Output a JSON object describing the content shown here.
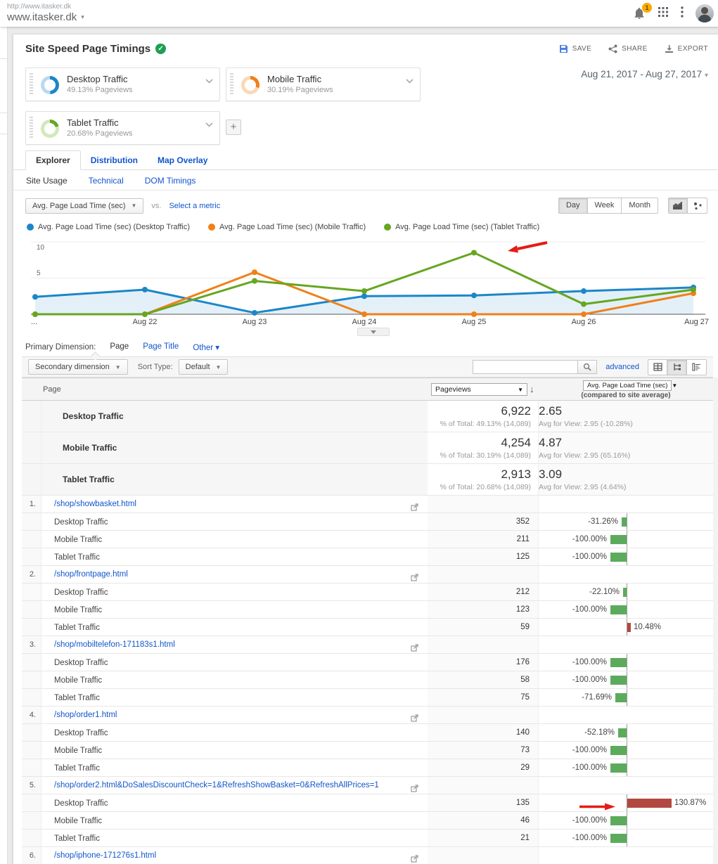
{
  "topbar": {
    "url": "http://www.itasker.dk",
    "account": "www.itasker.dk",
    "notification_count": "1"
  },
  "header": {
    "title": "Site Speed Page Timings",
    "save_label": "SAVE",
    "share_label": "SHARE",
    "export_label": "EXPORT",
    "date_range": "Aug 21, 2017 - Aug 27, 2017"
  },
  "segments": [
    {
      "name": "Desktop Traffic",
      "sub": "49.13% Pageviews",
      "pct": 49.13,
      "color": "#1c86c8",
      "light": "#b9d9ef"
    },
    {
      "name": "Mobile Traffic",
      "sub": "30.19% Pageviews",
      "pct": 30.19,
      "color": "#f08019",
      "light": "#f9d9b8"
    },
    {
      "name": "Tablet Traffic",
      "sub": "20.68% Pageviews",
      "pct": 20.68,
      "color": "#66a621",
      "light": "#d4e8bb"
    }
  ],
  "add_segment_label": "+",
  "tabs": [
    {
      "label": "Explorer",
      "active": true
    },
    {
      "label": "Distribution",
      "active": false
    },
    {
      "label": "Map Overlay",
      "active": false
    }
  ],
  "subtabs": [
    {
      "label": "Site Usage",
      "active": true
    },
    {
      "label": "Technical",
      "active": false
    },
    {
      "label": "DOM Timings",
      "active": false
    }
  ],
  "metric_bar": {
    "metric_dropdown": "Avg. Page Load Time (sec)",
    "vs_label": "vs.",
    "select_metric": "Select a metric",
    "granularities": [
      "Day",
      "Week",
      "Month"
    ],
    "active_granularity": "Day"
  },
  "chart_data": {
    "type": "line",
    "x": [
      "Aug 21",
      "Aug 22",
      "Aug 23",
      "Aug 24",
      "Aug 25",
      "Aug 26",
      "Aug 27"
    ],
    "x_tick_labels": [
      "...",
      "Aug 22",
      "Aug 23",
      "Aug 24",
      "Aug 25",
      "Aug 26",
      "Aug 27"
    ],
    "ylabel": "",
    "ylim": [
      0,
      10
    ],
    "yticks": [
      5,
      10
    ],
    "grid": true,
    "legend_position": "top",
    "series": [
      {
        "name": "Avg. Page Load Time (sec) (Desktop Traffic)",
        "color": "#1c86c8",
        "area_fill": true,
        "values": [
          2.4,
          3.4,
          0.2,
          2.5,
          2.6,
          3.2,
          3.7
        ]
      },
      {
        "name": "Avg. Page Load Time (sec) (Mobile Traffic)",
        "color": "#f08019",
        "area_fill": false,
        "values": [
          0,
          0,
          5.8,
          0,
          0,
          0,
          2.9
        ]
      },
      {
        "name": "Avg. Page Load Time (sec) (Tablet Traffic)",
        "color": "#66a621",
        "area_fill": false,
        "values": [
          0,
          0,
          4.6,
          3.2,
          8.5,
          1.4,
          3.4
        ]
      }
    ],
    "annotation": {
      "type": "red-arrow",
      "points_at": "Tablet Traffic peak Aug 25"
    }
  },
  "primary_dimension": {
    "label": "Primary Dimension:",
    "options": [
      {
        "label": "Page",
        "active": true
      },
      {
        "label": "Page Title",
        "active": false
      },
      {
        "label": "Other",
        "active": false,
        "caret": true
      }
    ]
  },
  "toolbar": {
    "secondary_dimension": "Secondary dimension",
    "sort_type_label": "Sort Type:",
    "sort_type_value": "Default",
    "search_value": "",
    "advanced": "advanced"
  },
  "table": {
    "headers": {
      "page": "Page",
      "pageviews": "Pageviews",
      "metric": "Avg. Page Load Time (sec)",
      "metric_sub": "(compared to site average)"
    },
    "summary": [
      {
        "name": "Desktop Traffic",
        "pageviews": "6,922",
        "pageviews_sub": "% of Total: 49.13% (14,089)",
        "metric": "2.65",
        "metric_sub": "Avg for View: 2.95 (-10.28%)"
      },
      {
        "name": "Mobile Traffic",
        "pageviews": "4,254",
        "pageviews_sub": "% of Total: 30.19% (14,089)",
        "metric": "4.87",
        "metric_sub": "Avg for View: 2.95 (65.16%)"
      },
      {
        "name": "Tablet Traffic",
        "pageviews": "2,913",
        "pageviews_sub": "% of Total: 20.68% (14,089)",
        "metric": "3.09",
        "metric_sub": "Avg for View: 2.95 (4.64%)"
      }
    ],
    "rows": [
      {
        "num": "1.",
        "url": "/shop/showbasket.html",
        "entries": [
          {
            "label": "Desktop Traffic",
            "pageviews": "352",
            "pct": -31.26,
            "pct_label": "-31.26%"
          },
          {
            "label": "Mobile Traffic",
            "pageviews": "211",
            "pct": -100,
            "pct_label": "-100.00%"
          },
          {
            "label": "Tablet Traffic",
            "pageviews": "125",
            "pct": -100,
            "pct_label": "-100.00%"
          }
        ]
      },
      {
        "num": "2.",
        "url": "/shop/frontpage.html",
        "entries": [
          {
            "label": "Desktop Traffic",
            "pageviews": "212",
            "pct": -22.1,
            "pct_label": "-22.10%"
          },
          {
            "label": "Mobile Traffic",
            "pageviews": "123",
            "pct": -100,
            "pct_label": "-100.00%"
          },
          {
            "label": "Tablet Traffic",
            "pageviews": "59",
            "pct": 10.48,
            "pct_label": "10.48%"
          }
        ]
      },
      {
        "num": "3.",
        "url": "/shop/mobiltelefon-171183s1.html",
        "entries": [
          {
            "label": "Desktop Traffic",
            "pageviews": "176",
            "pct": -100,
            "pct_label": "-100.00%"
          },
          {
            "label": "Mobile Traffic",
            "pageviews": "58",
            "pct": -100,
            "pct_label": "-100.00%"
          },
          {
            "label": "Tablet Traffic",
            "pageviews": "75",
            "pct": -71.69,
            "pct_label": "-71.69%"
          }
        ]
      },
      {
        "num": "4.",
        "url": "/shop/order1.html",
        "entries": [
          {
            "label": "Desktop Traffic",
            "pageviews": "140",
            "pct": -52.18,
            "pct_label": "-52.18%"
          },
          {
            "label": "Mobile Traffic",
            "pageviews": "73",
            "pct": -100,
            "pct_label": "-100.00%"
          },
          {
            "label": "Tablet Traffic",
            "pageviews": "29",
            "pct": -100,
            "pct_label": "-100.00%"
          }
        ]
      },
      {
        "num": "5.",
        "url": "/shop/order2.html&DoSalesDiscountCheck=1&RefreshShowBasket=0&RefreshAllPrices=1",
        "entries": [
          {
            "label": "Desktop Traffic",
            "pageviews": "135",
            "pct": 130.87,
            "pct_label": "130.87%",
            "arrow": true
          },
          {
            "label": "Mobile Traffic",
            "pageviews": "46",
            "pct": -100,
            "pct_label": "-100.00%"
          },
          {
            "label": "Tablet Traffic",
            "pageviews": "21",
            "pct": -100,
            "pct_label": "-100.00%"
          }
        ]
      },
      {
        "num": "6.",
        "url": "/shop/iphone-171276s1.html",
        "entries": []
      }
    ]
  },
  "colors": {
    "positive_bar": "#b2493f",
    "negative_bar": "#5cab5c",
    "link_blue": "#1155cc",
    "annotation_arrow": "#e41b17"
  }
}
